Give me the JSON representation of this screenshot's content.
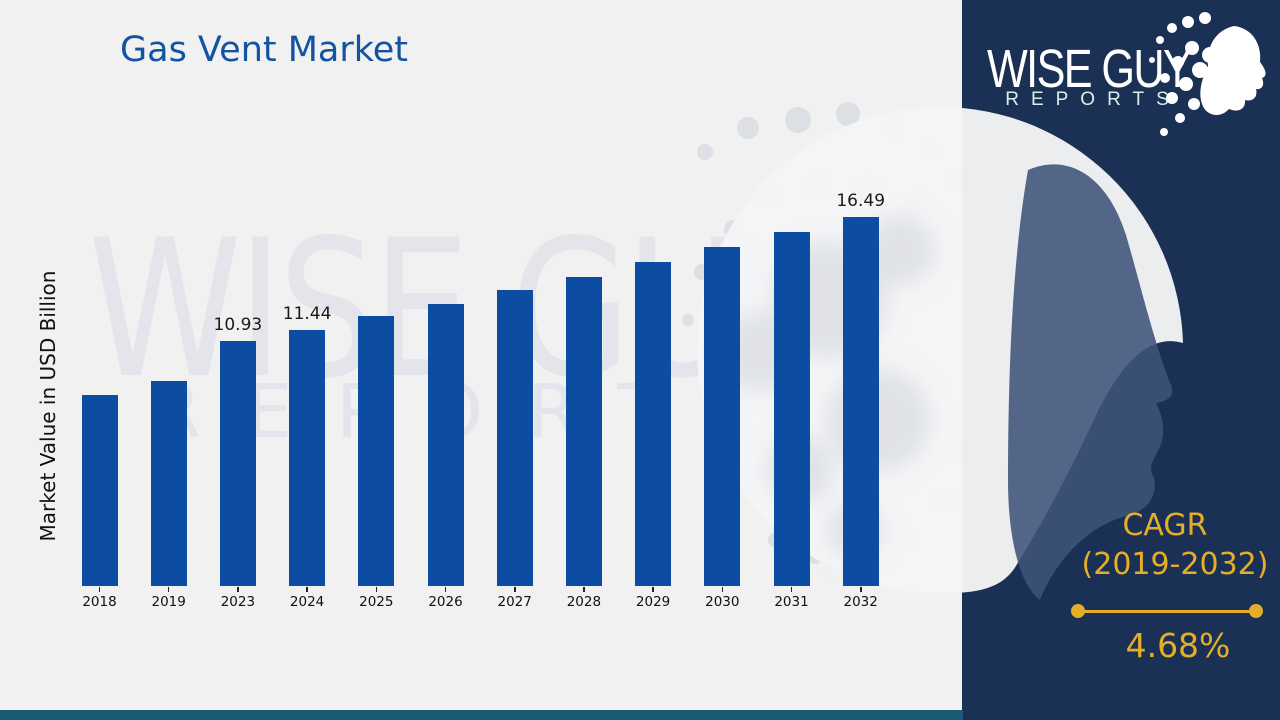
{
  "title": "Gas Vent Market",
  "watermark": {
    "line1": "WISE GUY",
    "line2": "REPORTS"
  },
  "logo": {
    "brand_top": "WISE GUY",
    "brand_bottom": "REPORTS",
    "head_icon": "head-profile-icon"
  },
  "cagr": {
    "heading": "CAGR",
    "range": "(2019-2032)",
    "value": "4.68%"
  },
  "colors": {
    "background": "#f1f1f2",
    "bar": "#0d4da1",
    "navy_panel": "#1b3055",
    "gold": "#e4ae27",
    "teal_strip": "#195a74",
    "title_blue": "#1253a2",
    "watermark": "#e3e5ea",
    "watermark_dot": "#dcdfe4",
    "face_blue": "#3d5379",
    "label_text": "#1a1a1a",
    "logo_white": "#ffffff",
    "reports_tint": "#d9efe7"
  },
  "chart_data": {
    "type": "bar",
    "title": "Gas Vent Market",
    "xlabel": "",
    "ylabel": "Market Value in USD Billion",
    "categories": [
      "2018",
      "2019",
      "2023",
      "2024",
      "2025",
      "2026",
      "2027",
      "2028",
      "2029",
      "2030",
      "2031",
      "2032"
    ],
    "values": [
      8.53,
      9.15,
      10.93,
      11.44,
      12.05,
      12.6,
      13.21,
      13.79,
      14.46,
      15.13,
      15.8,
      16.49
    ],
    "bar_labels": {
      "2023": "10.93",
      "2024": "11.44",
      "2032": "16.49"
    },
    "unit": "USD Billion",
    "grid": false,
    "legend": "none"
  }
}
